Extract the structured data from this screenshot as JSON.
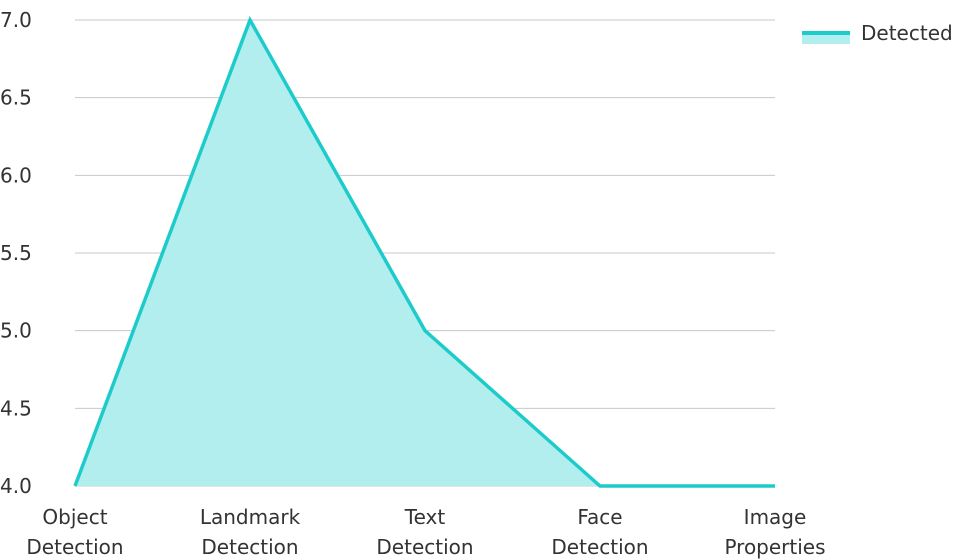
{
  "chart_data": {
    "type": "area",
    "title": "",
    "xlabel": "",
    "ylabel": "",
    "categories": [
      [
        "Object",
        "Detection"
      ],
      [
        "Landmark",
        "Detection"
      ],
      [
        "Text",
        "Detection"
      ],
      [
        "Face",
        "Detection"
      ],
      [
        "Image",
        "Properties"
      ]
    ],
    "series": [
      {
        "name": "Detected",
        "values": [
          4.0,
          7.0,
          5.0,
          4.0,
          4.0
        ],
        "line_color": "#1ecbcb",
        "fill_color": "#b2eeee"
      }
    ],
    "ylim": [
      4.0,
      7.0
    ],
    "yticks": [
      "4.0",
      "4.5",
      "5.0",
      "5.5",
      "6.0",
      "6.5",
      "7.0"
    ],
    "grid": true,
    "grid_color": "#c8c8c8",
    "legend_position": "top-right"
  }
}
